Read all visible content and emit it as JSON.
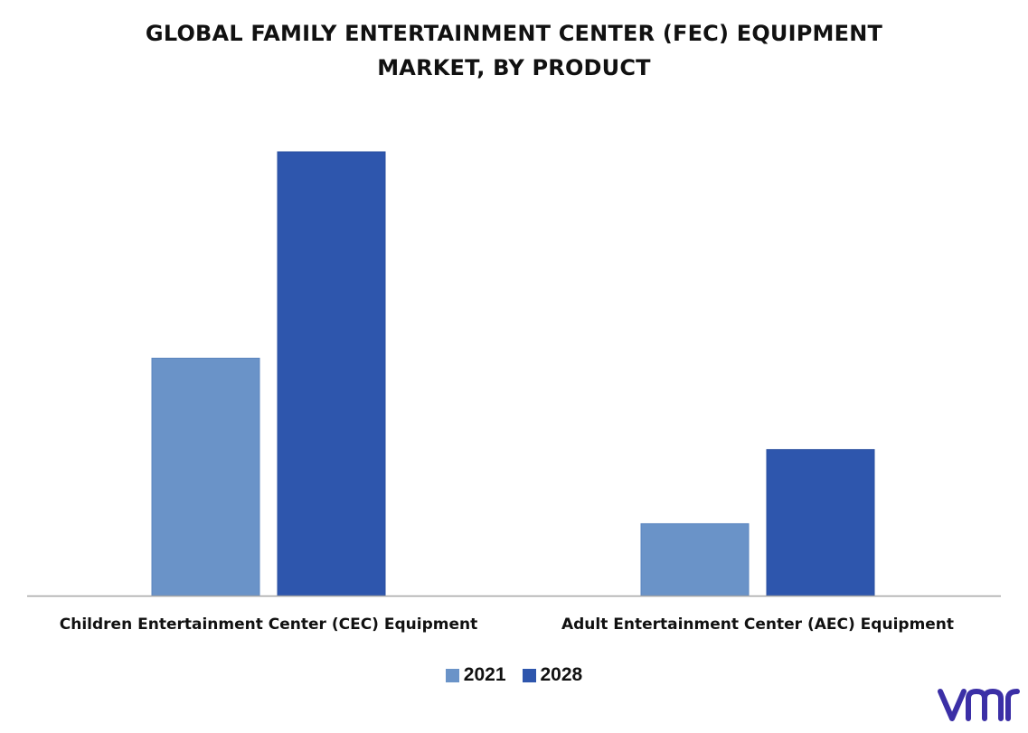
{
  "chart_data": {
    "type": "bar",
    "title_lines": [
      "GLOBAL FAMILY ENTERTAINMENT CENTER (FEC) EQUIPMENT",
      "MARKET, BY PRODUCT"
    ],
    "categories": [
      "Children Entertainment Center (CEC) Equipment",
      "Adult Entertainment Center (AEC) Equipment"
    ],
    "series": [
      {
        "name": "2021",
        "color": "#6a93c8",
        "values": [
          53.5,
          16.2
        ]
      },
      {
        "name": "2028",
        "color": "#2e56ad",
        "values": [
          100,
          32.9
        ]
      }
    ],
    "ylim": [
      0,
      100
    ],
    "grid": false,
    "legend_position": "bottom-center",
    "axis_color": "#a6a6a6"
  },
  "logo": {
    "icon": "vmr-logo",
    "color": "#3b2fa6"
  }
}
